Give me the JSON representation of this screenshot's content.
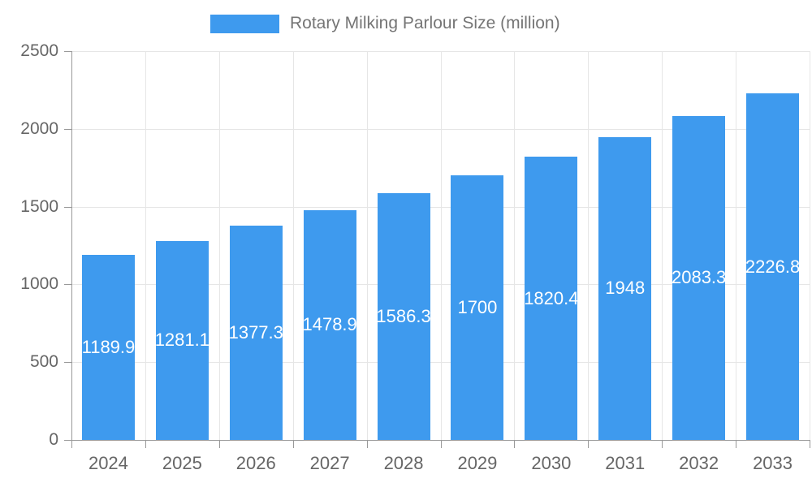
{
  "legend": {
    "label": "Rotary Milking Parlour Size (million)"
  },
  "chart_data": {
    "type": "bar",
    "title": "Rotary Milking Parlour Size (million)",
    "categories": [
      "2024",
      "2025",
      "2026",
      "2027",
      "2028",
      "2029",
      "2030",
      "2031",
      "2032",
      "2033"
    ],
    "series": [
      {
        "name": "Rotary Milking Parlour Size (million)",
        "color": "#3E9AEE",
        "values": [
          1189.9,
          1281.1,
          1377.3,
          1478.9,
          1586.3,
          1700,
          1820.4,
          1948,
          2083.3,
          2226.8
        ]
      }
    ],
    "value_labels": [
      "1189.9",
      "1281.1",
      "1377.3",
      "1478.9",
      "1586.3",
      "1700",
      "1820.4",
      "1948",
      "2083.3",
      "2226.8"
    ],
    "xlabel": "",
    "ylabel": "",
    "ylim": [
      0,
      2500
    ],
    "y_ticks": [
      0,
      500,
      1000,
      1500,
      2000,
      2500
    ],
    "grid": true,
    "legend_position": "top",
    "data_labels": {
      "position": "inside-center",
      "color": "#ffffff"
    },
    "colors": {
      "bar": "#3E9AEE",
      "axis": "#999999",
      "grid": "#e6e6e6",
      "tick_label": "#666666",
      "legend_text": "#757575"
    }
  }
}
